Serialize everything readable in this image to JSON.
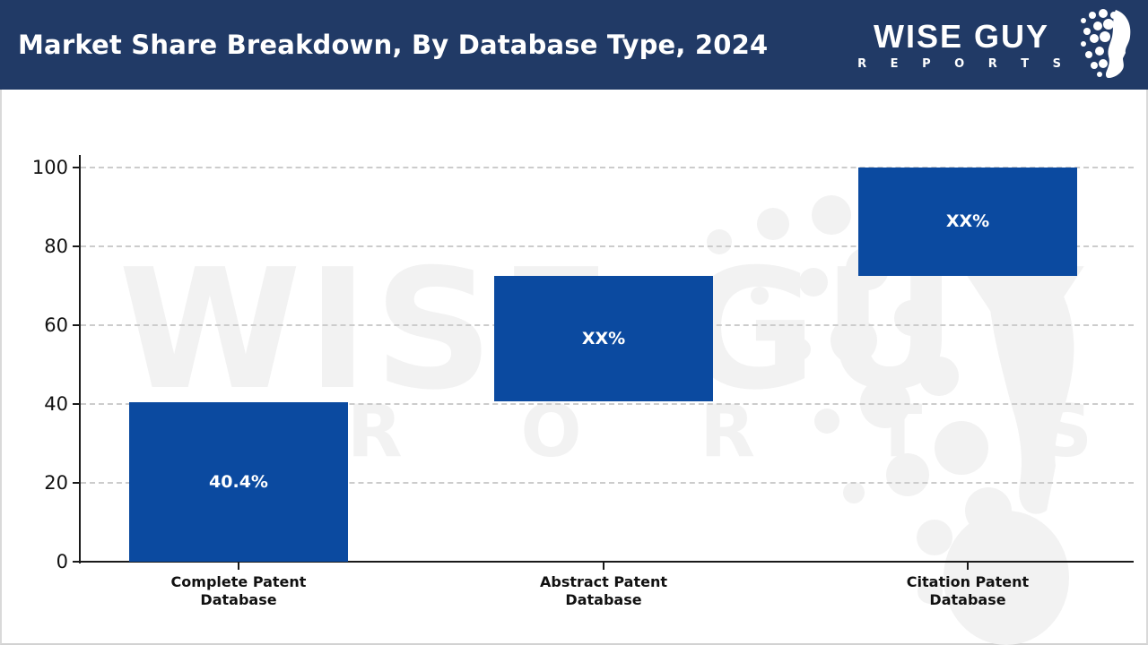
{
  "header": {
    "title": "Market Share Breakdown, By Database Type, 2024",
    "bg_color": "#213A66",
    "logo": {
      "wordmark": "WISE GUY",
      "subtext": "R E P O R T S"
    }
  },
  "watermark": {
    "line1": "WISE GUY",
    "line2": "R O R T S"
  },
  "chart_data": {
    "type": "bar",
    "subtype": "floating-waterfall",
    "title": "Market Share Breakdown, By Database Type, 2024",
    "xlabel": "",
    "ylabel": "",
    "ylim": [
      0,
      100
    ],
    "yticks": [
      0,
      20,
      40,
      60,
      80,
      100
    ],
    "grid": "horizontal-dashed",
    "legend": "none",
    "bar_color": "#0B4AA0",
    "value_label_color": "#ffffff",
    "categories": [
      {
        "line1": "Complete Patent",
        "line2": "Database"
      },
      {
        "line1": "Abstract Patent",
        "line2": "Database"
      },
      {
        "line1": "Citation Patent",
        "line2": "Database"
      }
    ],
    "segments": [
      {
        "category": "Complete Patent Database",
        "start": 0,
        "end": 40.4,
        "label": "40.4%"
      },
      {
        "category": "Abstract Patent Database",
        "start": 40.7,
        "end": 72.5,
        "label": "XX%"
      },
      {
        "category": "Citation Patent Database",
        "start": 72.6,
        "end": 100,
        "label": "XX%"
      }
    ]
  }
}
